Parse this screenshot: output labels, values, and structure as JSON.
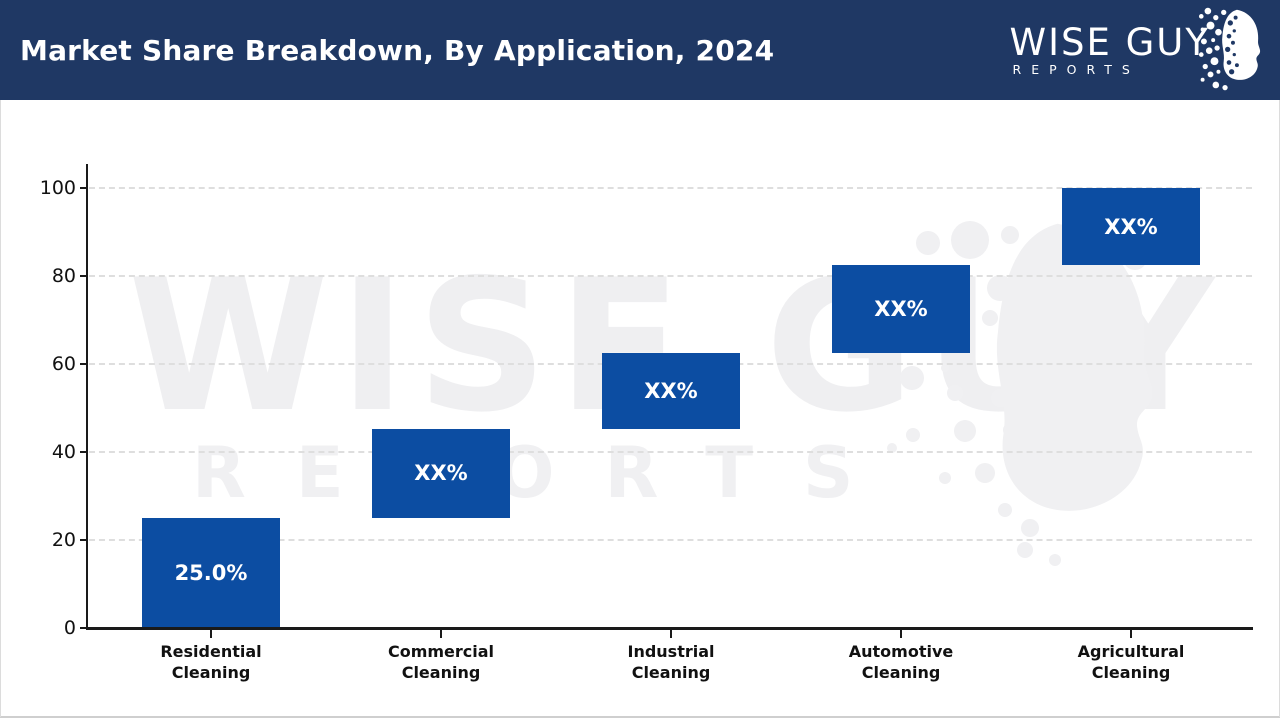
{
  "header": {
    "title": "Market Share Breakdown, By Application, 2024",
    "logo": {
      "line1": "WISE GUY",
      "line2": "REPORTS"
    }
  },
  "watermark": {
    "line1": "WISE GUY",
    "line2": "REPORTS"
  },
  "chart_data": {
    "type": "bar",
    "subtype": "floating-waterfall",
    "title": "Market Share Breakdown, By Application, 2024",
    "categories": [
      "Residential Cleaning",
      "Commercial Cleaning",
      "Industrial Cleaning",
      "Automotive Cleaning",
      "Agricultural Cleaning"
    ],
    "series": [
      {
        "name": "Market share (%)",
        "segments": [
          {
            "category": "Residential Cleaning",
            "start": 0,
            "end": 25.0,
            "label": "25.0%"
          },
          {
            "category": "Commercial Cleaning",
            "start": 25.0,
            "end": 45.3,
            "label": "XX%"
          },
          {
            "category": "Industrial Cleaning",
            "start": 45.3,
            "end": 62.4,
            "label": "XX%"
          },
          {
            "category": "Automotive Cleaning",
            "start": 62.4,
            "end": 82.5,
            "label": "XX%"
          },
          {
            "category": "Agricultural Cleaning",
            "start": 82.5,
            "end": 100.0,
            "label": "XX%"
          }
        ]
      }
    ],
    "xlabel": "",
    "ylabel": "",
    "ylim": [
      0,
      100
    ],
    "yticks": [
      0,
      20,
      40,
      60,
      80,
      100
    ],
    "grid": "horizontal-dashed",
    "legend": "none",
    "bar_color": "#0c4da2",
    "bar_label_color": "#ffffff",
    "header_color": "#1f3864"
  }
}
